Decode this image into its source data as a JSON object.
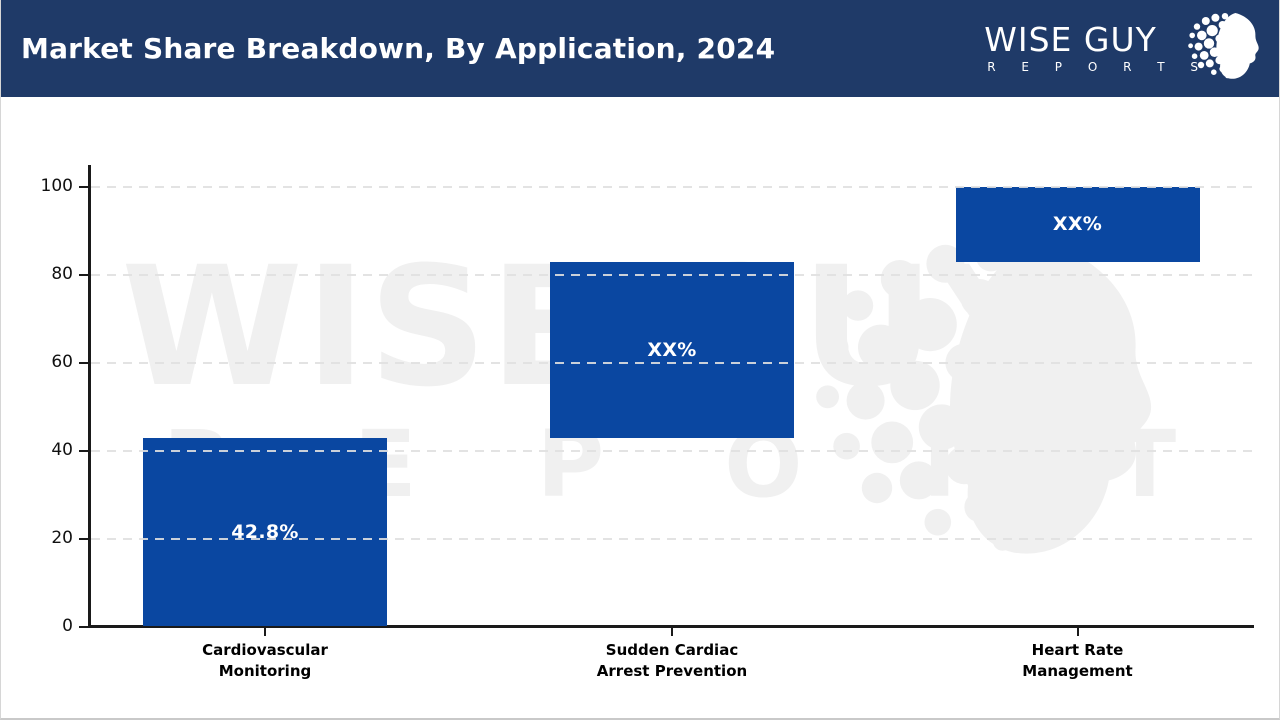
{
  "header": {
    "title": "Market Share Breakdown, By Application, 2024",
    "logo": {
      "wordmark": "WISE GUY",
      "subtext": "R E P O R T S"
    }
  },
  "watermark": {
    "line1": "WISE GUY",
    "line2": "R E P O R T S"
  },
  "chart_data": {
    "type": "bar",
    "subtype": "cumulative-waterfall",
    "title": "Market Share Breakdown, By Application, 2024",
    "categories": [
      [
        "Cardiovascular",
        "Monitoring"
      ],
      [
        "Sudden Cardiac",
        "Arrest Prevention"
      ],
      [
        "Heart Rate",
        "Management"
      ]
    ],
    "series": [
      {
        "name": "Market Share (%)",
        "segments": [
          {
            "category": "Cardiovascular Monitoring",
            "start": 0,
            "end": 42.8,
            "label": "42.8%"
          },
          {
            "category": "Sudden Cardiac Arrest Prevention",
            "start": 42.8,
            "end": 82.8,
            "label": "XX%"
          },
          {
            "category": "Heart Rate Management",
            "start": 82.8,
            "end": 100,
            "label": "XX%"
          }
        ]
      }
    ],
    "ylim": [
      0,
      100
    ],
    "yticks": [
      0,
      20,
      40,
      60,
      80,
      100
    ],
    "grid": "horizontal-dashed",
    "legend": "none",
    "bar_color": "#0a47a1",
    "bar_label_color": "#ffffff"
  },
  "colors": {
    "header_bg": "#1f3a68",
    "header_text": "#ffffff",
    "bar": "#0a47a1",
    "axis": "#1a1a1a",
    "gridline": "#e0e0e0",
    "watermark": "#f0f0f0",
    "page_bg": "#ffffff"
  }
}
